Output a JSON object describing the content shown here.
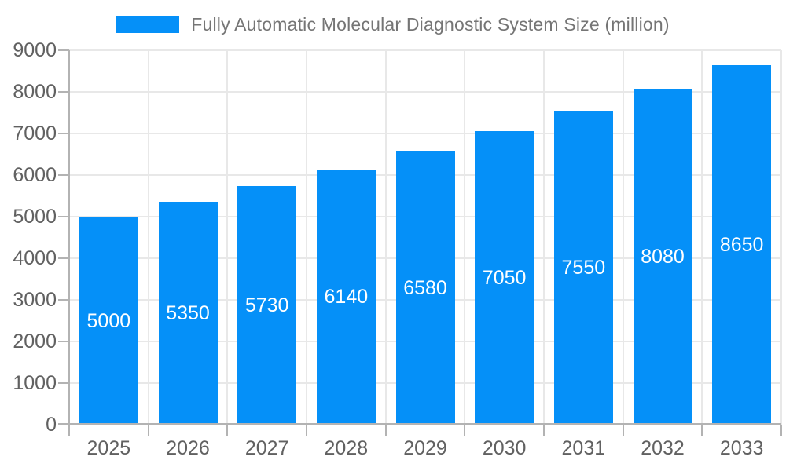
{
  "legend": {
    "label": "Fully Automatic Molecular Diagnostic System Size (million)"
  },
  "chart_data": {
    "type": "bar",
    "title": "Fully Automatic Molecular Diagnostic System Size (million)",
    "categories": [
      "2025",
      "2026",
      "2027",
      "2028",
      "2029",
      "2030",
      "2031",
      "2032",
      "2033"
    ],
    "values": [
      5000,
      5350,
      5730,
      6140,
      6580,
      7050,
      7550,
      8080,
      8650
    ],
    "xlabel": "",
    "ylabel": "",
    "ylim": [
      0,
      9000
    ],
    "yticks": [
      0,
      1000,
      2000,
      3000,
      4000,
      5000,
      6000,
      7000,
      8000,
      9000
    ],
    "grid": true,
    "legend_position": "top",
    "value_label_position": "inside-center",
    "colors": {
      "bar": "#0590F8",
      "bar_label": "#ffffff",
      "grid": "#e8e8e8",
      "axis": "#b3b3b3",
      "axis_text": "#616161",
      "legend_text": "#757575"
    }
  }
}
